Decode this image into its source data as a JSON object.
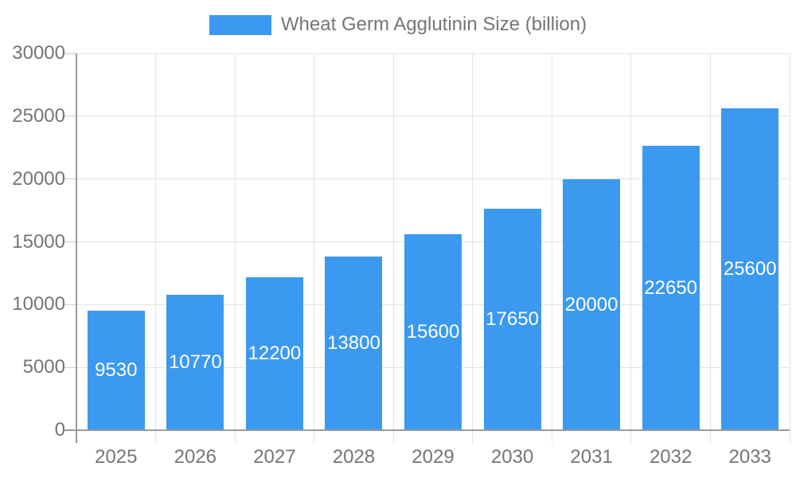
{
  "legend": {
    "label": "Wheat Germ Agglutinin Size (billion)"
  },
  "chart_data": {
    "type": "bar",
    "title": "Wheat Germ Agglutinin Size (billion)",
    "series_name": "Wheat Germ Agglutinin Size (billion)",
    "categories": [
      "2025",
      "2026",
      "2027",
      "2028",
      "2029",
      "2030",
      "2031",
      "2032",
      "2033"
    ],
    "values": [
      9530,
      10770,
      12200,
      13800,
      15600,
      17650,
      20000,
      22650,
      25600
    ],
    "xlabel": "",
    "ylabel": "",
    "ylim": [
      0,
      30000
    ],
    "yticks": [
      0,
      5000,
      10000,
      15000,
      20000,
      25000,
      30000
    ],
    "grid": true,
    "legend_position": "top-center",
    "bar_labels_inside": true,
    "colors": {
      "bar": "#3B99F0",
      "grid": "#e3e3e3",
      "tick": "#cccccc",
      "axis": "#9b9b9b",
      "text": "#757575",
      "bar_label": "#ffffff",
      "background": "#ffffff"
    }
  }
}
